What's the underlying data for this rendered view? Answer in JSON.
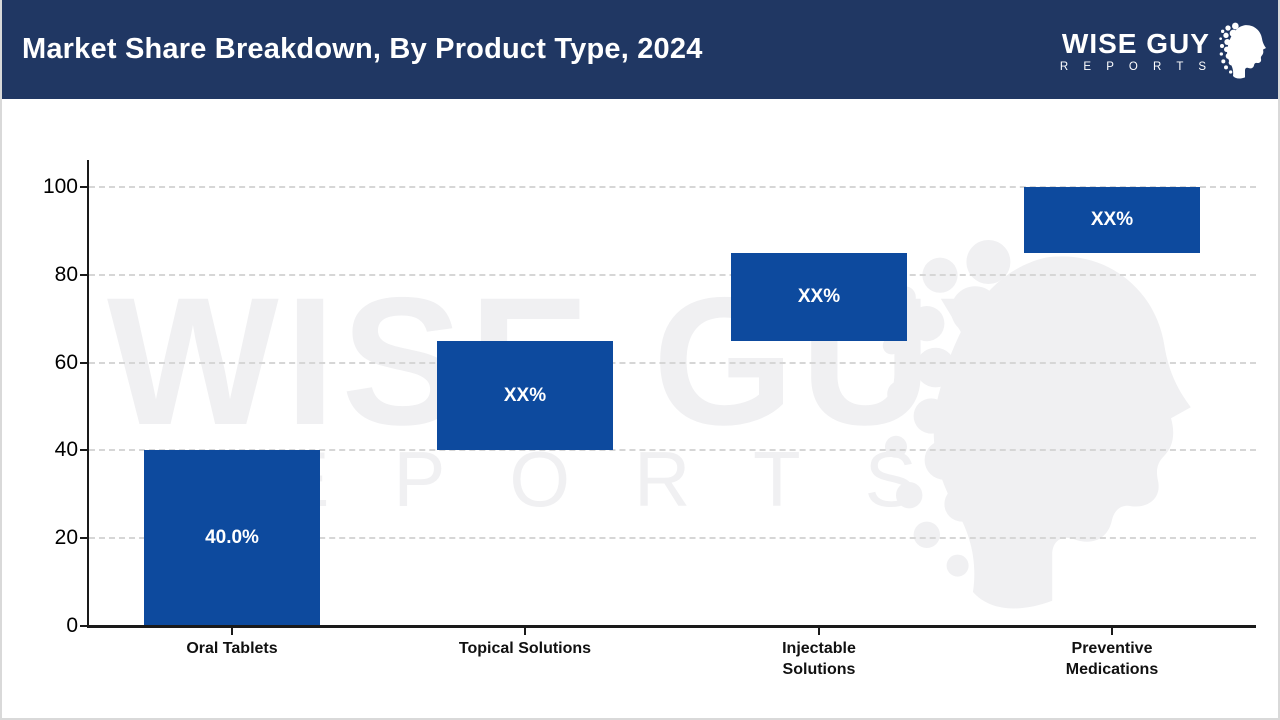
{
  "header": {
    "title": "Market Share Breakdown, By Product Type, 2024",
    "logo": {
      "primary": "WISE GUY",
      "secondary": "R E P O R T S"
    }
  },
  "watermark": {
    "primary": "WISE GUY",
    "secondary": "REPORTS"
  },
  "chart_data": {
    "type": "bar",
    "variant": "stepped-waterfall",
    "title": "Market Share Breakdown, By Product Type, 2024",
    "categories": [
      "Oral Tablets",
      "Topical Solutions",
      "Injectable\nSolutions",
      "Preventive\nMedications"
    ],
    "segments": [
      {
        "category": "Oral Tablets",
        "start": 0,
        "end": 40,
        "label": "40.0%"
      },
      {
        "category": "Topical Solutions",
        "start": 40,
        "end": 65,
        "label": "XX%"
      },
      {
        "category": "Injectable Solutions",
        "start": 65,
        "end": 85,
        "label": "XX%"
      },
      {
        "category": "Preventive Medications",
        "start": 85,
        "end": 100,
        "label": "XX%"
      }
    ],
    "ylim": [
      0,
      100
    ],
    "yticks": [
      0,
      20,
      40,
      60,
      80,
      100
    ],
    "xlabel": "",
    "ylabel": "",
    "grid": "horizontal-dashed",
    "legend": "none"
  },
  "colors": {
    "header_bg": "#203763",
    "bar": "#0d4a9e",
    "bar_label": "#ffffff",
    "watermark": "#f0f0f2",
    "gridline": "#d6d6d6",
    "axis": "#1a1a1a",
    "frame_border": "#d9d9d9"
  }
}
